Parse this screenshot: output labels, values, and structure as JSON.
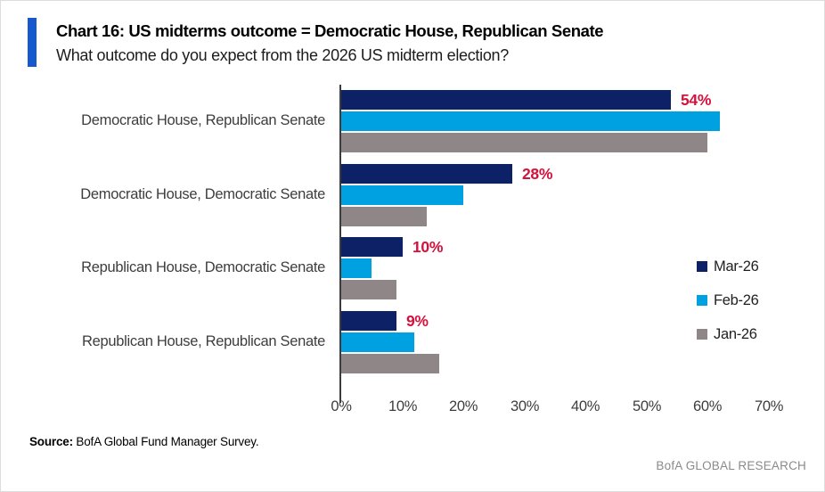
{
  "header": {
    "title": "Chart 16: US midterms outcome = Democratic House, Republican Senate",
    "subtitle": "What outcome do you expect from the 2026 US midterm election?",
    "accent_color": "#1659CE"
  },
  "chart_data": {
    "type": "bar",
    "orientation": "horizontal",
    "title": "Chart 16: US midterms outcome = Democratic House, Republican Senate",
    "subtitle": "What outcome do you expect from the 2026 US midterm election?",
    "categories": [
      "Democratic House, Republican Senate",
      "Democratic House, Democratic Senate",
      "Republican House, Democratic Senate",
      "Republican House, Republican Senate"
    ],
    "series": [
      {
        "name": "Mar-26",
        "color": "#0D2266",
        "values": [
          54,
          28,
          10,
          9
        ],
        "labels": [
          "54%",
          "28%",
          "10%",
          "9%"
        ]
      },
      {
        "name": "Feb-26",
        "color": "#00A1E0",
        "values": [
          62,
          20,
          5,
          12
        ]
      },
      {
        "name": "Jan-26",
        "color": "#8E8687",
        "values": [
          60,
          14,
          9,
          16
        ]
      }
    ],
    "value_label_color": "#D5113C",
    "xlim": [
      0,
      70
    ],
    "x_ticks": [
      "0%",
      "10%",
      "20%",
      "30%",
      "40%",
      "50%",
      "60%",
      "70%"
    ],
    "grid": false,
    "legend_position": "right"
  },
  "footer": {
    "source_label": "Source:",
    "source_text": " BofA Global Fund Manager Survey.",
    "brand": "BofA GLOBAL RESEARCH"
  }
}
